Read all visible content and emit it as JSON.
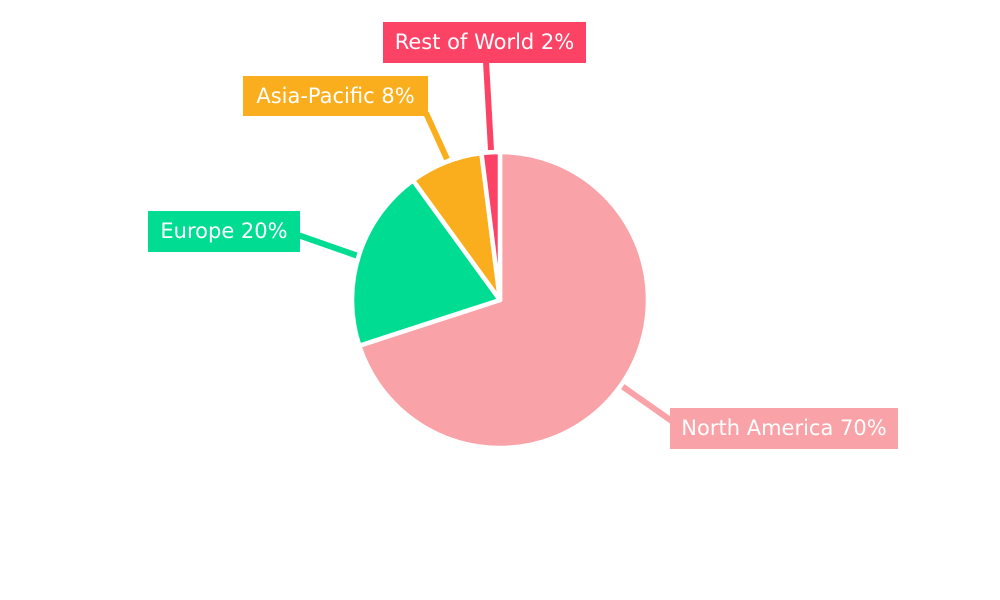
{
  "page": {
    "background_color": "#FFFFFF"
  },
  "chart_data": {
    "type": "pie",
    "title": "",
    "legend": "none",
    "labels": [
      "North America",
      "Europe",
      "Asia-Pacific",
      "Rest of World"
    ],
    "values": [
      70,
      20,
      8,
      2
    ],
    "unit": "%",
    "colors": [
      "#F9A3A8",
      "#00DD92",
      "#FBAE1D",
      "#FC4265"
    ],
    "callout_labels": [
      "North America 70%",
      "Europe 20%",
      "Asia-Pacific 8%",
      "Rest of World 2%"
    ],
    "callout_text_color": "#FFFFFF",
    "slice_border_color": "#FFFFFF",
    "start_angle_deg": 0,
    "direction": "clockwise"
  }
}
